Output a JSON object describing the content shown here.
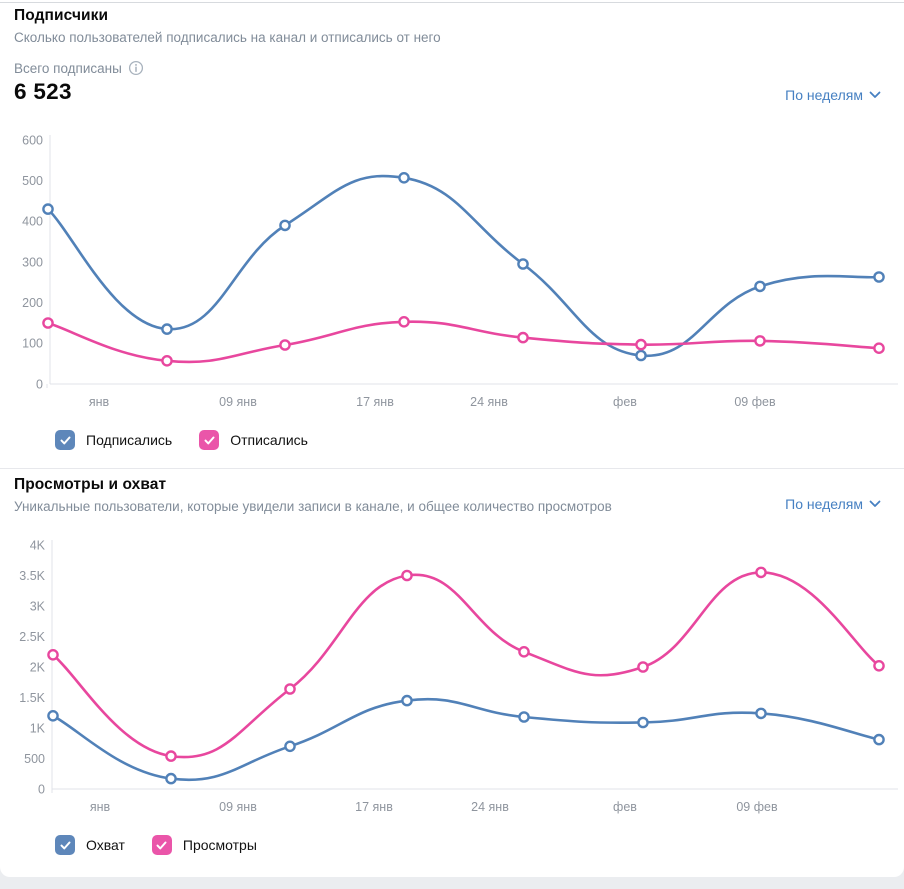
{
  "theme": {
    "accent": "#4680c2",
    "line_blue": "#5181b8",
    "line_pink": "#e8479e",
    "checkbox_blue": "#5e87ba",
    "checkbox_pink": "#ea55a9",
    "text_gray": "#818c99",
    "tick_gray": "#8f959e",
    "axis_line": "#e0e3e8",
    "page_background": "#ebedf0"
  },
  "subscribers": {
    "title": "Подписчики",
    "subtitle": "Сколько пользователей подписались на канал и отписались от него",
    "total_label": "Всего подписаны",
    "total_value": "6 523",
    "period_label": "По неделям",
    "legend": [
      {
        "label": "Подписались",
        "color": "#5e87ba",
        "checked": true
      },
      {
        "label": "Отписались",
        "color": "#ea55a9",
        "checked": true
      }
    ]
  },
  "views": {
    "title": "Просмотры и охват",
    "subtitle": "Уникальные пользователи, которые увидели записи в канале, и общее количество просмотров",
    "period_label": "По неделям",
    "legend": [
      {
        "label": "Охват",
        "color": "#5e87ba",
        "checked": true
      },
      {
        "label": "Просмотры",
        "color": "#ea55a9",
        "checked": true
      }
    ]
  },
  "chart_data": [
    {
      "type": "line",
      "title": "Подписчики",
      "x_labels": [
        "янв",
        "09 янв",
        "17 янв",
        "24 янв",
        "фев",
        "09 фев"
      ],
      "ylim": [
        0,
        600
      ],
      "y_ticks": [
        {
          "value": 0,
          "label": "0"
        },
        {
          "value": 100,
          "label": "100"
        },
        {
          "value": 200,
          "label": "200"
        },
        {
          "value": 300,
          "label": "300"
        },
        {
          "value": 400,
          "label": "400"
        },
        {
          "value": 500,
          "label": "500"
        },
        {
          "value": 600,
          "label": "600"
        }
      ],
      "grid": false,
      "legend_position": "bottom",
      "series": [
        {
          "name": "Подписались",
          "color": "#5181b8",
          "values": [
            430,
            135,
            390,
            507,
            295,
            70,
            240,
            263
          ]
        },
        {
          "name": "Отписались",
          "color": "#e8479e",
          "values": [
            150,
            57,
            96,
            153,
            114,
            97,
            106,
            88
          ]
        }
      ]
    },
    {
      "type": "line",
      "title": "Просмотры и охват",
      "x_labels": [
        "янв",
        "09 янв",
        "17 янв",
        "24 янв",
        "фев",
        "09 фев"
      ],
      "ylim": [
        0,
        4000
      ],
      "y_ticks": [
        {
          "value": 0,
          "label": "0"
        },
        {
          "value": 500,
          "label": "500"
        },
        {
          "value": 1000,
          "label": "1K"
        },
        {
          "value": 1500,
          "label": "1.5K"
        },
        {
          "value": 2000,
          "label": "2K"
        },
        {
          "value": 2500,
          "label": "2.5K"
        },
        {
          "value": 3000,
          "label": "3K"
        },
        {
          "value": 3500,
          "label": "3.5K"
        },
        {
          "value": 4000,
          "label": "4K"
        }
      ],
      "grid": false,
      "legend_position": "bottom",
      "series": [
        {
          "name": "Охват",
          "color": "#5181b8",
          "values": [
            1200,
            170,
            700,
            1450,
            1180,
            1090,
            1240,
            810
          ]
        },
        {
          "name": "Просмотры",
          "color": "#e8479e",
          "values": [
            2200,
            540,
            1640,
            3500,
            2250,
            2000,
            3550,
            2020
          ]
        }
      ]
    }
  ]
}
